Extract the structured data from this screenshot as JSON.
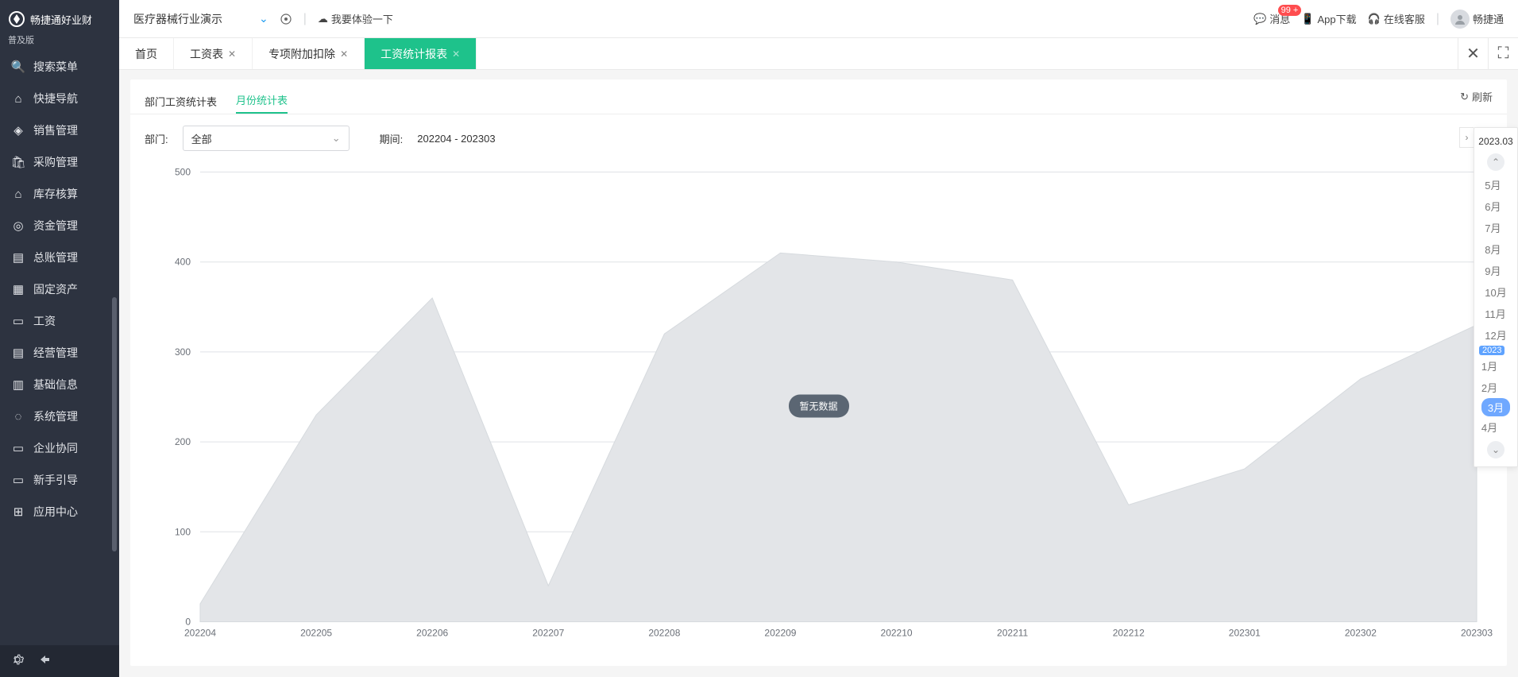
{
  "brand": {
    "name": "畅捷通好业财",
    "edition": "普及版"
  },
  "sidebar": {
    "items": [
      {
        "icon": "search",
        "label": "搜索菜单"
      },
      {
        "icon": "home",
        "label": "快捷导航"
      },
      {
        "icon": "tag",
        "label": "销售管理"
      },
      {
        "icon": "bag",
        "label": "采购管理"
      },
      {
        "icon": "box",
        "label": "库存核算"
      },
      {
        "icon": "coin",
        "label": "资金管理"
      },
      {
        "icon": "book",
        "label": "总账管理"
      },
      {
        "icon": "asset",
        "label": "固定资产"
      },
      {
        "icon": "salary",
        "label": "工资"
      },
      {
        "icon": "biz",
        "label": "经营管理"
      },
      {
        "icon": "base",
        "label": "基础信息"
      },
      {
        "icon": "sys",
        "label": "系统管理"
      },
      {
        "icon": "coop",
        "label": "企业协同"
      },
      {
        "icon": "guide",
        "label": "新手引导"
      },
      {
        "icon": "appc",
        "label": "应用中心"
      }
    ]
  },
  "topbar": {
    "org": "医疗器械行业演示",
    "try": "我要体验一下",
    "msg": {
      "label": "消息",
      "badge": "99 +"
    },
    "app": "App下载",
    "svc": "在线客服",
    "user": "畅捷通"
  },
  "tabs": [
    {
      "label": "首页",
      "close": false,
      "active": false
    },
    {
      "label": "工资表",
      "close": true,
      "active": false
    },
    {
      "label": "专项附加扣除",
      "close": true,
      "active": false
    },
    {
      "label": "工资统计报表",
      "close": true,
      "active": true
    }
  ],
  "subtabs": {
    "dept": "部门工资统计表",
    "month": "月份统计表",
    "refresh": "刷新"
  },
  "filters": {
    "dept_label": "部门:",
    "dept_value": "全部",
    "period_label": "期间:",
    "period_value": "202204 - 202303"
  },
  "chart": {
    "type": "area",
    "categories": [
      "202204",
      "202205",
      "202206",
      "202207",
      "202208",
      "202209",
      "202210",
      "202211",
      "202212",
      "202301",
      "202302",
      "202303"
    ],
    "values": [
      20,
      230,
      360,
      40,
      320,
      410,
      400,
      380,
      130,
      170,
      270,
      330
    ],
    "ylim": [
      0,
      500
    ],
    "ytick_step": 100,
    "fill_color": "#e3e5e8",
    "stroke_color": "#d6dade",
    "grid_color": "#dfe2e6",
    "axis_color": "#9aa0a6",
    "background_color": "#ffffff",
    "label_fontsize": 12,
    "label_color": "#6a6f77",
    "no_data_text": "暂无数据"
  },
  "month_rail": {
    "head": "2023.03",
    "months": [
      "5月",
      "6月",
      "7月",
      "8月",
      "9月",
      "10月",
      "11月",
      "12月"
    ],
    "year_divider": "2023",
    "months2": [
      "1月",
      "2月",
      "3月",
      "4月"
    ],
    "selected": "3月"
  }
}
